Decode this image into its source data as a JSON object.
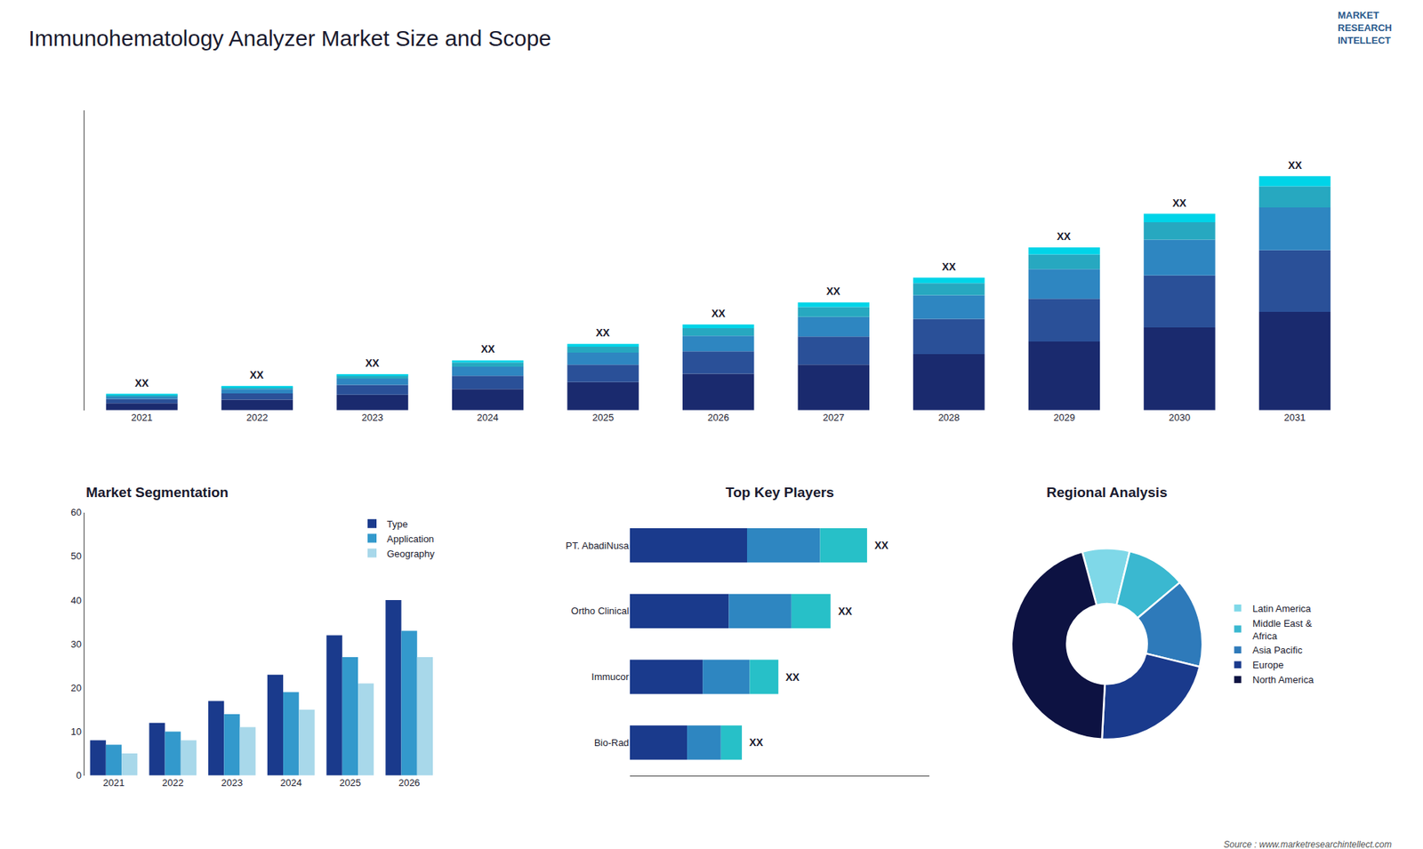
{
  "title": "Immunohematology Analyzer Market Size and Scope",
  "annotations": [
    "Source : www.marketresearchintellect.com",
    "MARKET\nRESEARCH\nINTELLECT"
  ],
  "chart_data": [
    {
      "type": "bar",
      "stacked": true,
      "categories": [
        "2021",
        "2022",
        "2023",
        "2024",
        "2025",
        "2026",
        "2027",
        "2028",
        "2029",
        "2030",
        "2031"
      ],
      "series": [
        {
          "color": "#1a2a6e",
          "values": [
            1.0,
            1.5,
            2.2,
            3.0,
            4.0,
            5.2,
            6.5,
            8.0,
            9.8,
            11.8,
            14.0
          ]
        },
        {
          "color": "#2a5098",
          "values": [
            0.6,
            0.9,
            1.4,
            1.9,
            2.5,
            3.2,
            4.0,
            5.0,
            6.1,
            7.4,
            8.8
          ]
        },
        {
          "color": "#2e86c1",
          "values": [
            0.4,
            0.6,
            0.9,
            1.3,
            1.7,
            2.2,
            2.8,
            3.4,
            4.2,
            5.1,
            6.1
          ]
        },
        {
          "color": "#27a8c0",
          "values": [
            0.2,
            0.3,
            0.45,
            0.6,
            0.85,
            1.1,
            1.4,
            1.7,
            2.1,
            2.5,
            3.0
          ]
        },
        {
          "color": "#00d4e8",
          "values": [
            0.1,
            0.15,
            0.2,
            0.3,
            0.4,
            0.52,
            0.65,
            0.8,
            1.0,
            1.2,
            1.45
          ]
        }
      ],
      "ylim": [
        0,
        42.688
      ],
      "yticks": [],
      "tick_labels": "x",
      "grid": false,
      "annotations": [
        "XX",
        "XX",
        "XX",
        "XX",
        "XX",
        "XX",
        "XX",
        "XX",
        "XX",
        "XX",
        "XX"
      ]
    },
    {
      "type": "bar",
      "title": "Market Segmentation",
      "categories": [
        "2021",
        "2022",
        "2023",
        "2024",
        "2025",
        "2026"
      ],
      "series": [
        {
          "name": "Type",
          "color": "#1a3a8c",
          "values": [
            8,
            12,
            17,
            23,
            32,
            40
          ]
        },
        {
          "name": "Application",
          "color": "#3399cc",
          "values": [
            7,
            10,
            14,
            19,
            27,
            33
          ]
        },
        {
          "name": "Geography",
          "color": "#a8d8ea",
          "values": [
            5,
            8,
            11,
            15,
            21,
            27
          ]
        }
      ],
      "ylim": [
        0,
        60
      ],
      "yticks": [
        0,
        10,
        20,
        30,
        40,
        50,
        60
      ],
      "grid": false,
      "legend": "upper right"
    },
    {
      "type": "bar",
      "title": "Top Key Players",
      "orientation": "horizontal",
      "stacked": true,
      "categories": [
        "PT. AbadiNusa",
        "Ortho Clinical",
        "Immucor",
        "Bio-Rad"
      ],
      "series": [
        {
          "color": "#1a3a8c",
          "values": [
            45,
            38,
            28,
            22
          ]
        },
        {
          "color": "#2e86c1",
          "values": [
            28,
            24,
            18,
            13
          ]
        },
        {
          "color": "#27c0c8",
          "values": [
            18,
            15,
            11,
            8
          ]
        }
      ],
      "xlim": [
        0,
        115
      ],
      "xticks": [],
      "tick_labels": "y",
      "grid": false,
      "annotations": [
        "XX",
        "XX",
        "XX",
        "XX"
      ]
    },
    {
      "type": "pie",
      "title": "Regional Analysis",
      "categories": [
        "Latin America",
        "Middle East &\nAfrica",
        "Asia Pacific",
        "Europe",
        "North America"
      ],
      "values": [
        8,
        10,
        15,
        22,
        45
      ],
      "colors": [
        "#7fd8e8",
        "#3ab8d0",
        "#2e7aba",
        "#1a3a8c",
        "#0d1242"
      ],
      "legend": "right"
    }
  ]
}
